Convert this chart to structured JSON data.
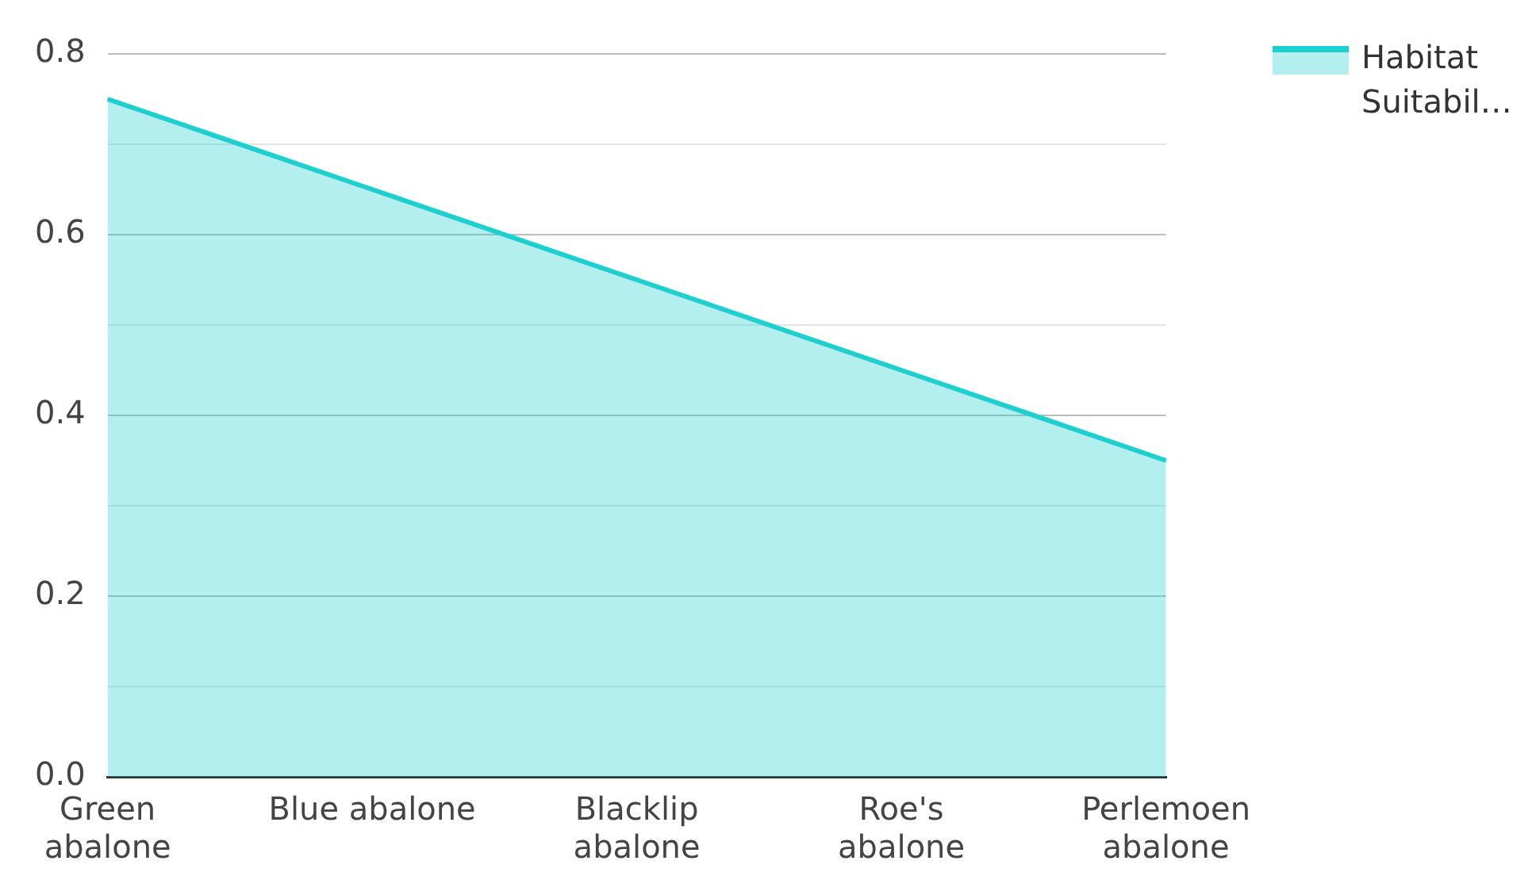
{
  "chart_data": {
    "type": "area",
    "categories": [
      "Green abalone",
      "Blue abalone",
      "Blacklip abalone",
      "Roe's abalone",
      "Perlemoen abalone"
    ],
    "series": [
      {
        "name": "Habitat Suitabil…",
        "color": "#1ecfcf",
        "values": [
          0.75,
          0.65,
          0.55,
          0.45,
          0.35
        ]
      }
    ],
    "ylim": [
      0,
      0.8
    ],
    "yticks": [
      {
        "value": 0,
        "label": "0.0"
      },
      {
        "value": 0.1,
        "label": null
      },
      0.2,
      {
        "value": 0.3,
        "label": null
      },
      0.4,
      {
        "value": 0.5,
        "label": null
      },
      0.6,
      {
        "value": 0.7,
        "label": null
      },
      0.8
    ],
    "grid": "y",
    "legend": "top right"
  }
}
